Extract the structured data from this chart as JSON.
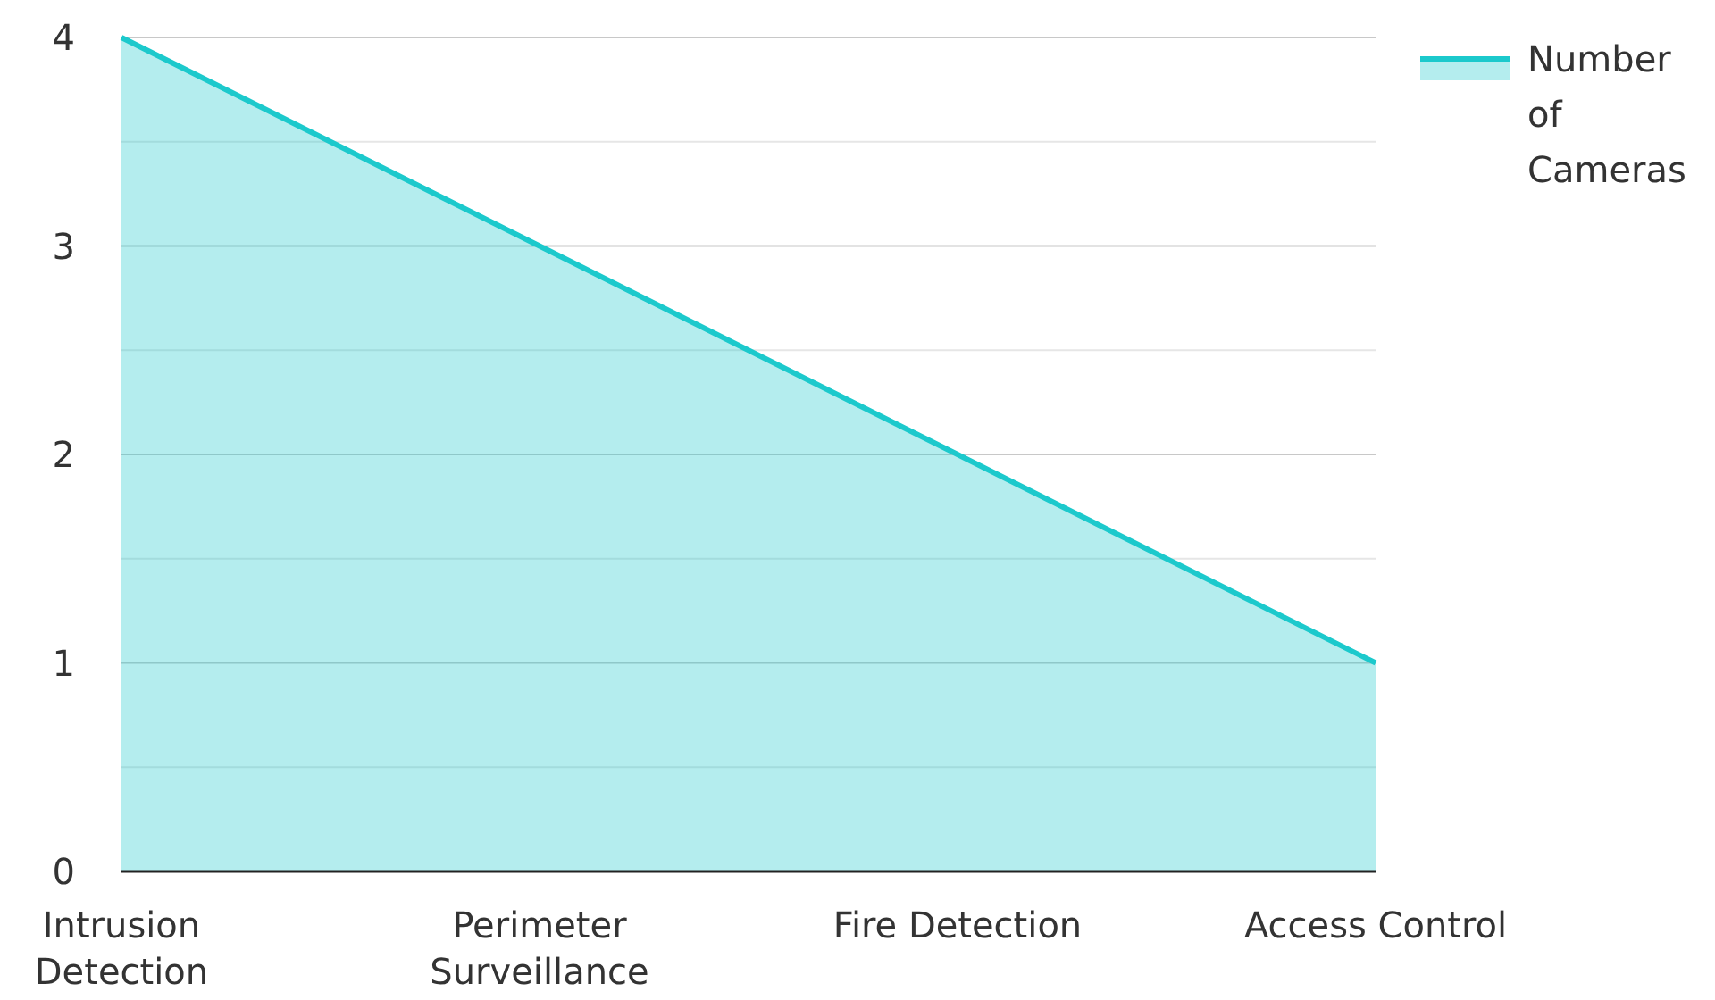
{
  "chart_data": {
    "type": "area",
    "categories": [
      "Intrusion Detection",
      "Perimeter Surveillance",
      "Fire Detection",
      "Access Control"
    ],
    "series": [
      {
        "name": "Number of Cameras",
        "color": "#1cc9cc",
        "values": [
          4,
          3,
          2,
          1
        ]
      }
    ],
    "ylim": [
      0,
      4
    ],
    "yticks": [
      0,
      {
        "value": 0.5,
        "label": null
      },
      1,
      {
        "value": 1.5,
        "label": null
      },
      2,
      {
        "value": 2.5,
        "label": null
      },
      3,
      {
        "value": 3.5,
        "label": null
      },
      4
    ],
    "grid": "y",
    "legend": "top right",
    "marker": "none"
  }
}
